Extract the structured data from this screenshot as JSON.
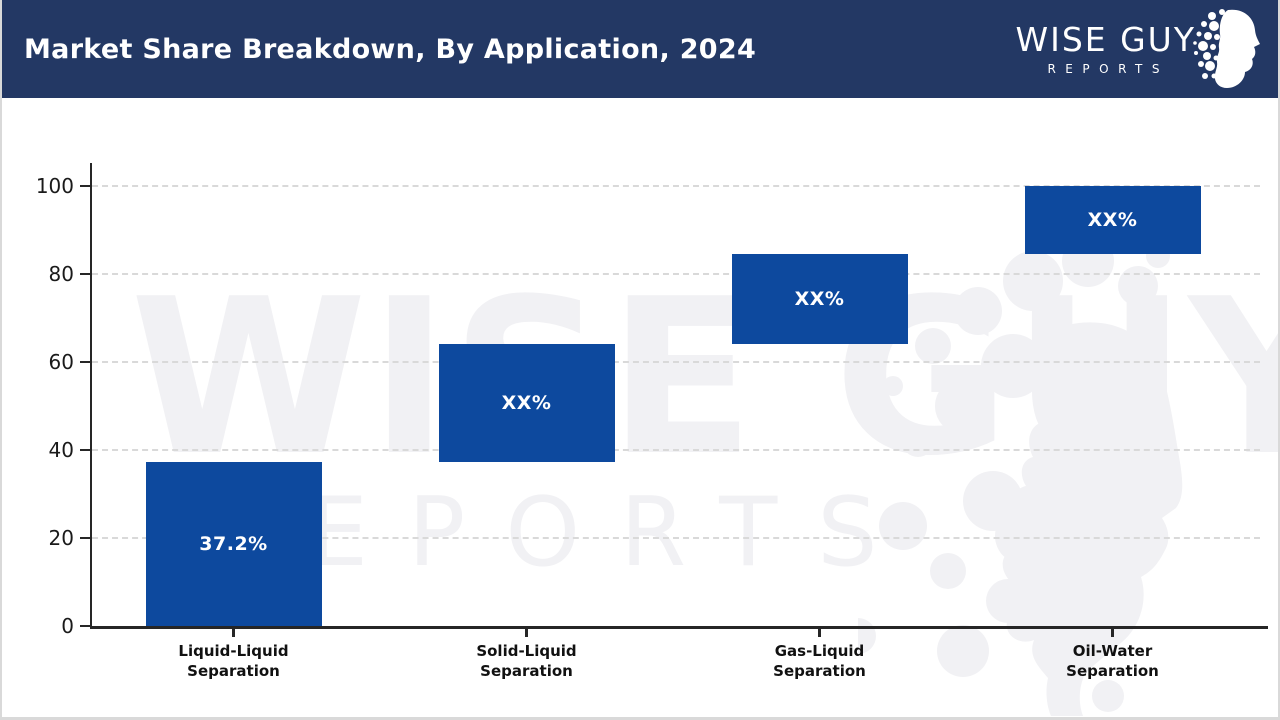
{
  "header": {
    "title": "Market Share Breakdown, By Application, 2024",
    "logo": {
      "name": "WISE GUY",
      "sub": "REPORTS",
      "face_icon": "dotted-head-profile-icon"
    }
  },
  "watermark": {
    "line1": "WISE GUY",
    "line2": "REPORTS",
    "face_icon": "dotted-head-profile-icon"
  },
  "colors": {
    "header_bg": "#233864",
    "bar": "#0d499e",
    "grid": "#d9d9d9",
    "axis": "#262626",
    "watermark": "#f1f1f4",
    "title": "#ffffff",
    "bar_label": "#ffffff"
  },
  "chart_data": {
    "type": "bar",
    "subtype": "waterfall",
    "title": "Market Share Breakdown, By Application, 2024",
    "xlabel": "",
    "ylabel": "",
    "ylim": [
      0,
      100
    ],
    "yticks": [
      0,
      20,
      40,
      60,
      80,
      100
    ],
    "ytick_labels": [
      "0",
      "20",
      "40",
      "60",
      "80",
      "100"
    ],
    "grid": "horizontal-dashed",
    "legend": "none",
    "categories": [
      "Liquid-Liquid\nSeparation",
      "Solid-Liquid\nSeparation",
      "Gas-Liquid\nSeparation",
      "Oil-Water\nSeparation"
    ],
    "segments": [
      {
        "category": "Liquid-Liquid Separation",
        "from": 0,
        "to": 37.2,
        "label": "37.2%"
      },
      {
        "category": "Solid-Liquid Separation",
        "from": 37.2,
        "to": 64,
        "label": "XX%"
      },
      {
        "category": "Gas-Liquid Separation",
        "from": 64,
        "to": 84.5,
        "label": "XX%"
      },
      {
        "category": "Oil-Water Separation",
        "from": 84.5,
        "to": 100,
        "label": "XX%"
      }
    ]
  }
}
